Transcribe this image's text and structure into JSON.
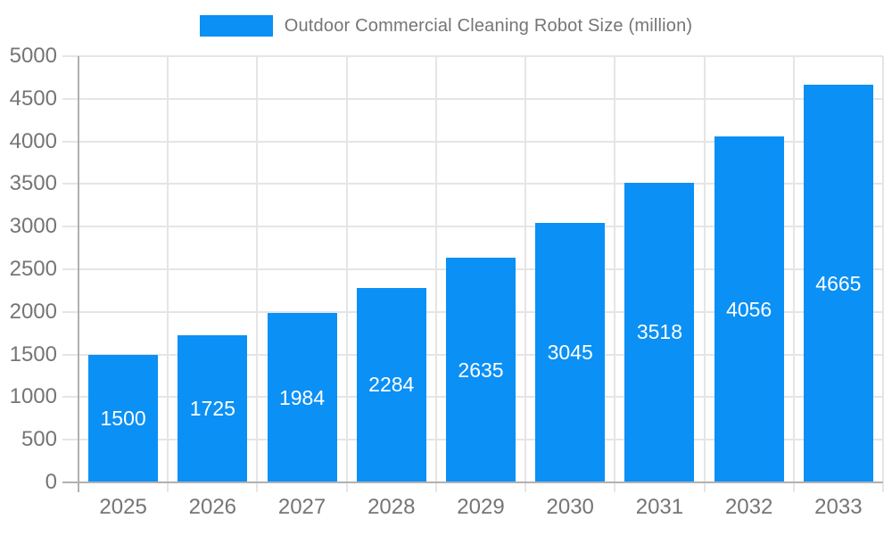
{
  "legend": {
    "label": "Outdoor Commercial Cleaning Robot Size (million)"
  },
  "chart_data": {
    "type": "bar",
    "title": "Outdoor Commercial Cleaning Robot Size (million)",
    "categories": [
      "2025",
      "2026",
      "2027",
      "2028",
      "2029",
      "2030",
      "2031",
      "2032",
      "2033"
    ],
    "values": [
      1500,
      1725,
      1984,
      2284,
      2635,
      3045,
      3518,
      4056,
      4665
    ],
    "value_labels": [
      "1500",
      "1725",
      "1984",
      "2284",
      "2635",
      "3045",
      "3518",
      "4056",
      "4665"
    ],
    "xlabel": "",
    "ylabel": "",
    "ylim": [
      0,
      5000
    ],
    "yticks": [
      0,
      500,
      1000,
      1500,
      2000,
      2500,
      3000,
      3500,
      4000,
      4500,
      5000
    ],
    "ytick_labels": [
      "0",
      "500",
      "1000",
      "1500",
      "2000",
      "2500",
      "3000",
      "3500",
      "4000",
      "4500",
      "5000"
    ],
    "grid": true,
    "legend_position": "top-center",
    "colors": {
      "bar": "#0b90f5",
      "bar_value_text": "#ffffff",
      "axis_line": "#b0b0b0",
      "gridline": "#e5e5e5",
      "tick_text": "#757575",
      "legend_text": "#757575",
      "background": "#ffffff"
    }
  }
}
